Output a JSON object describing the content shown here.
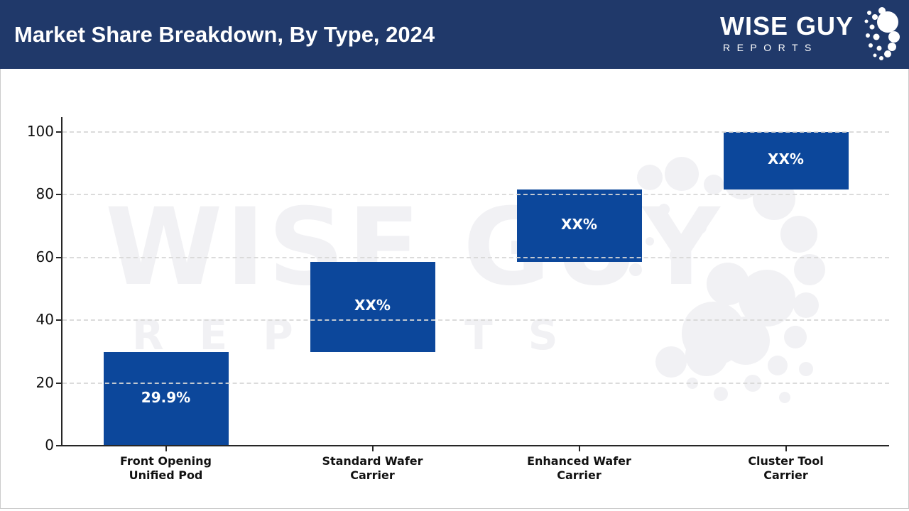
{
  "header": {
    "title": "Market Share Breakdown, By Type, 2024",
    "bg_color": "#20396A",
    "logo": {
      "line1": "WISE GUY",
      "line2": "REPORTS"
    }
  },
  "watermark": {
    "line1": "WISE GUY",
    "line2": "REPORTS"
  },
  "chart_data": {
    "type": "bar",
    "subtype": "waterfall",
    "title": "Market Share Breakdown, By Type, 2024",
    "categories": [
      [
        "Front Opening",
        "Unified Pod"
      ],
      [
        "Standard Wafer",
        "Carrier"
      ],
      [
        "Enhanced Wafer",
        "Carrier"
      ],
      [
        "Cluster Tool",
        "Carrier"
      ]
    ],
    "segments": [
      {
        "label": "29.9%",
        "start": 0,
        "end": 29.9
      },
      {
        "label": "XX%",
        "start": 29.9,
        "end": 58.6
      },
      {
        "label": "XX%",
        "start": 58.6,
        "end": 81.7
      },
      {
        "label": "XX%",
        "start": 81.7,
        "end": 100
      }
    ],
    "yticks": [
      0,
      20,
      40,
      60,
      80,
      100
    ],
    "ylim": [
      0,
      100
    ],
    "xlabel": "",
    "ylabel": "",
    "bar_color": "#0C479B",
    "bar_label_color": "#ffffff",
    "grid": "horizontal-dashed",
    "legend": "none"
  }
}
